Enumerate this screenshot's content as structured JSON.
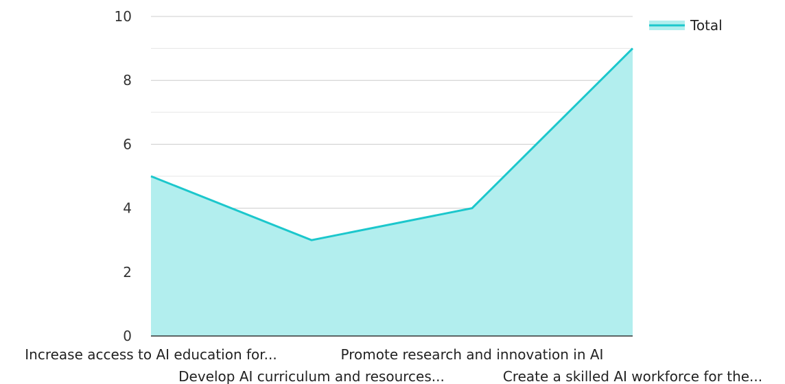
{
  "chart_data": {
    "type": "area",
    "categories": [
      "Increase access to AI education for...",
      "Develop AI curriculum and resources...",
      "Promote research and innovation in AI",
      "Create a skilled AI workforce for the..."
    ],
    "series": [
      {
        "name": "Total",
        "values": [
          5,
          3,
          4,
          9
        ]
      }
    ],
    "ylim": [
      0,
      10
    ],
    "yticks": [
      0,
      2,
      4,
      6,
      8,
      10
    ],
    "grid": true,
    "legend": "top-right",
    "colors": {
      "line": "#1cc7cc",
      "fill": "#b2eeee",
      "grid": "#cccccc",
      "minor_grid": "#e5e5e5",
      "axis": "#333333"
    }
  }
}
